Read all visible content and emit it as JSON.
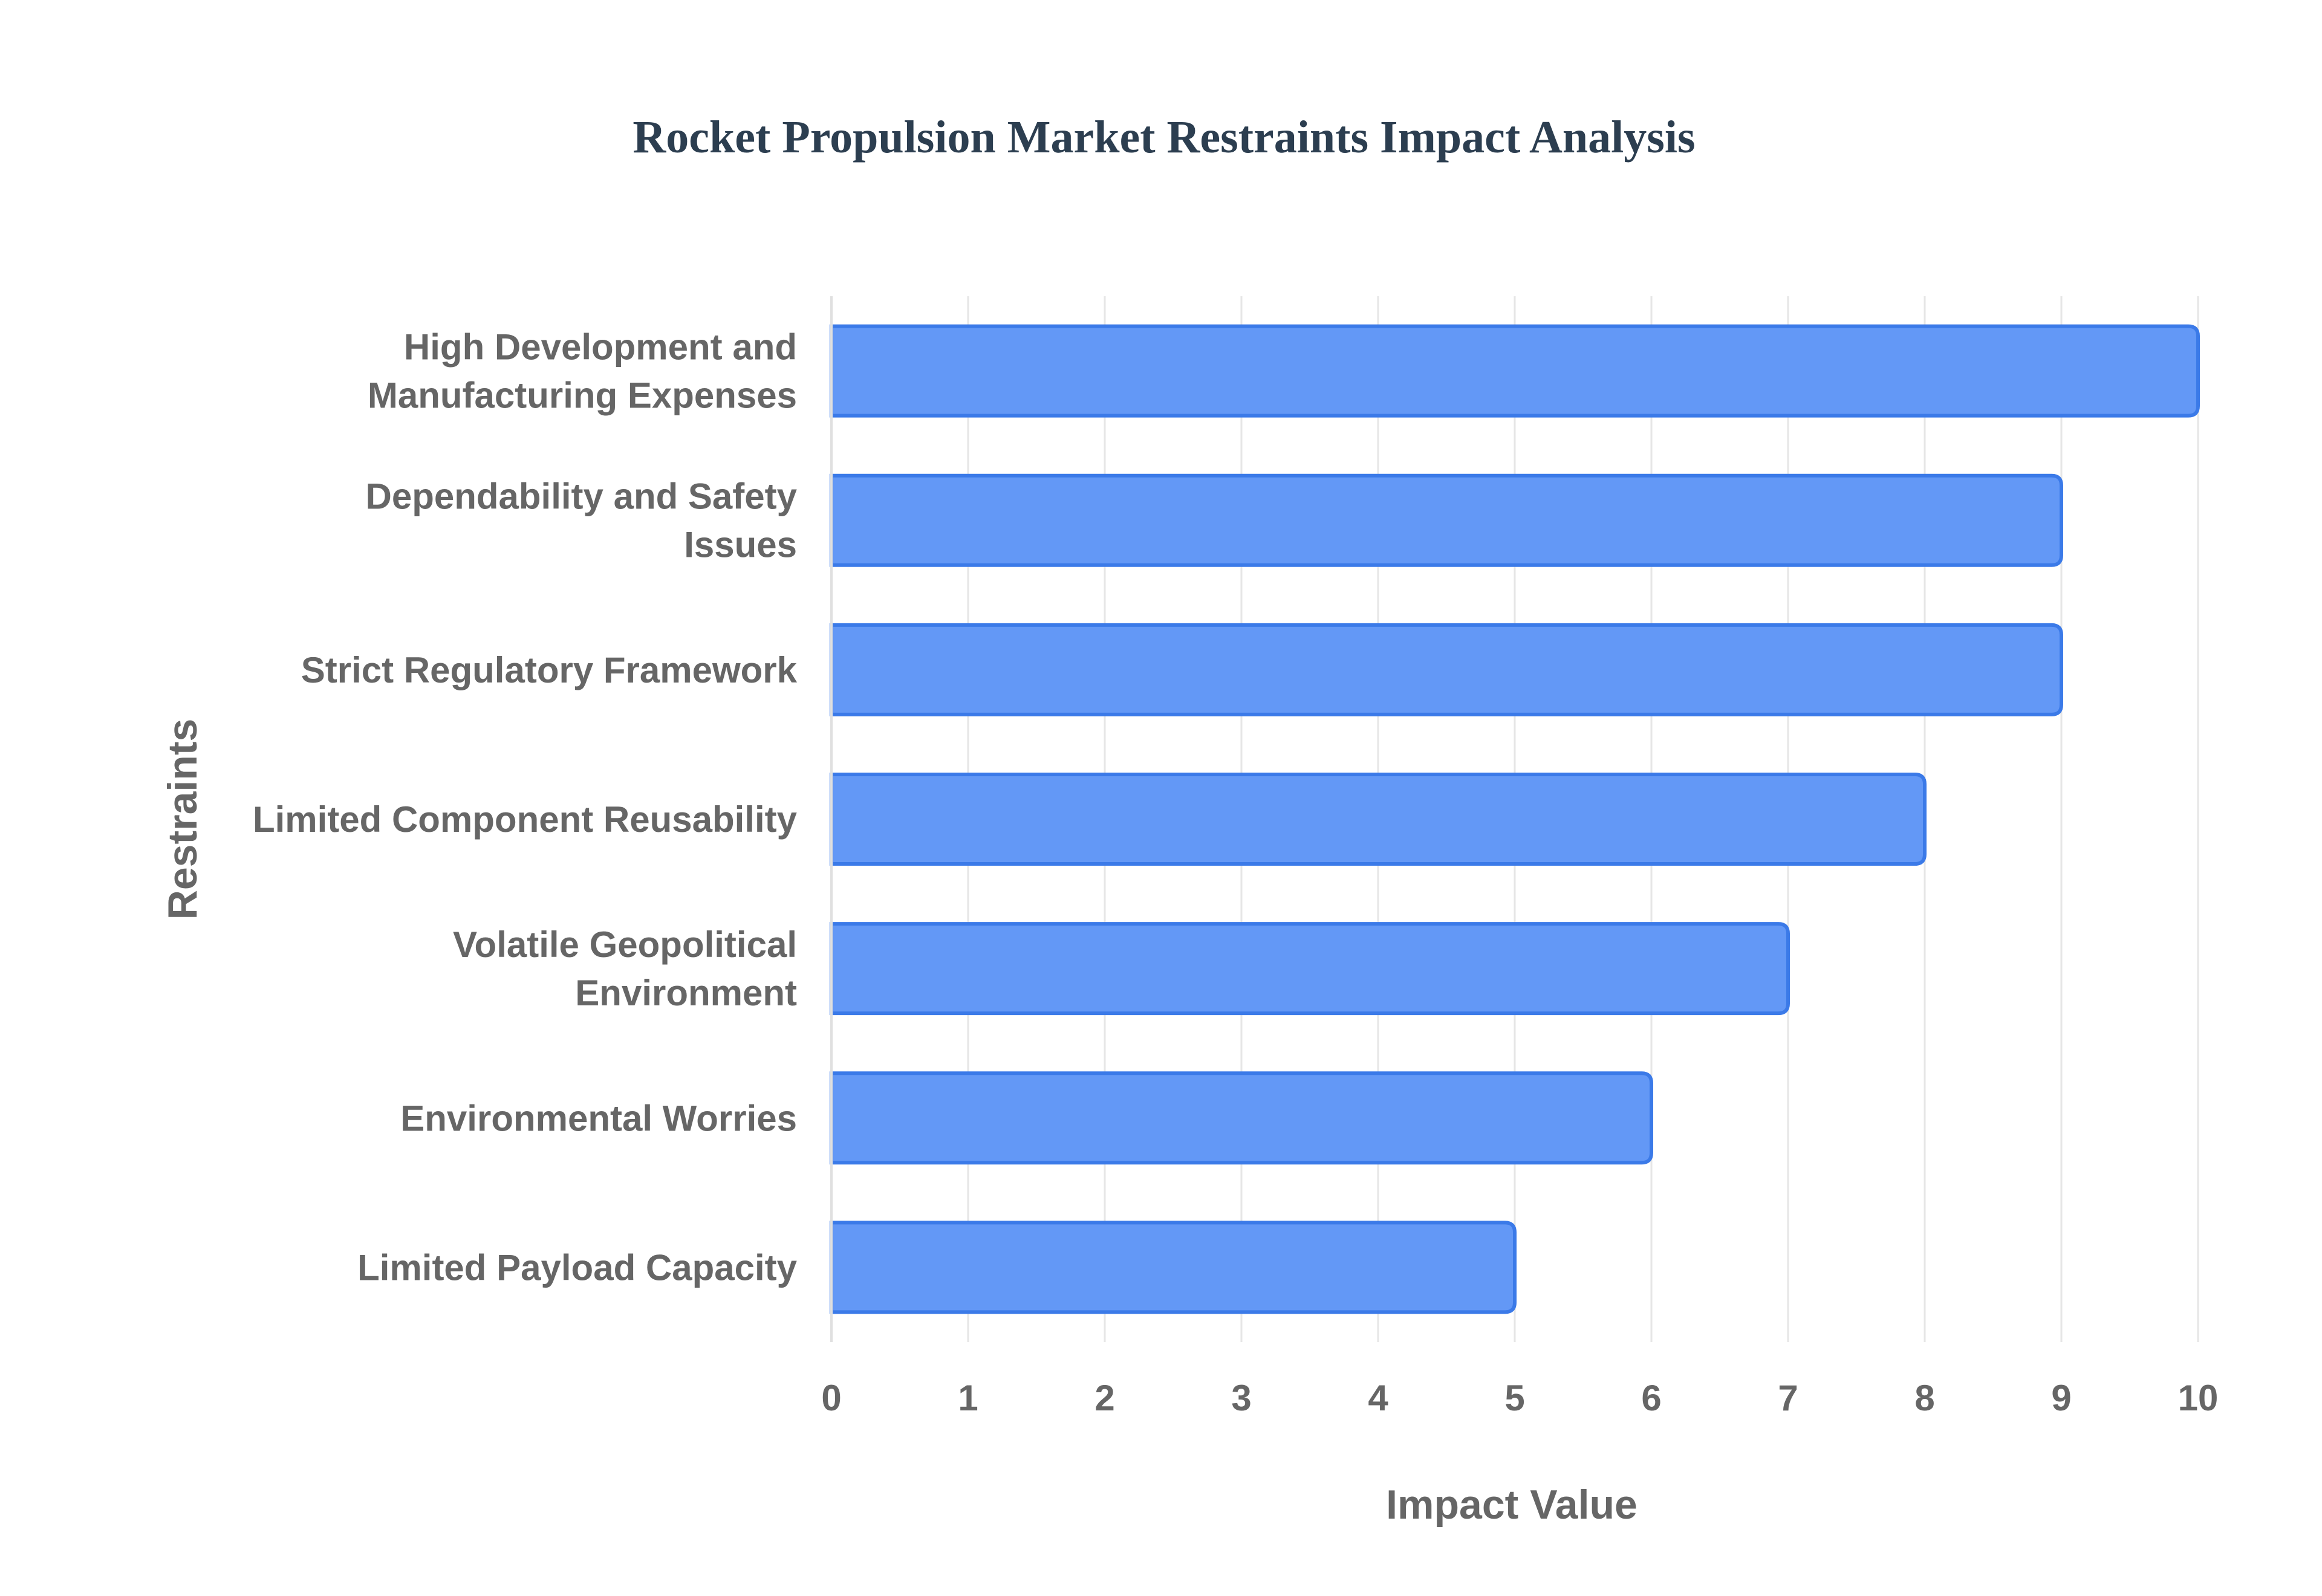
{
  "chart_data": {
    "type": "bar",
    "orientation": "horizontal",
    "title": "Rocket Propulsion Market Restraints Impact Analysis",
    "xlabel": "Impact Value",
    "ylabel": "Restraints",
    "xlim": [
      0,
      10
    ],
    "ticks": [
      "0",
      "1",
      "2",
      "3",
      "4",
      "5",
      "6",
      "7",
      "8",
      "9",
      "10"
    ],
    "grid": true,
    "bar_color": "#6398f6",
    "bar_border_color": "#3b7ae8",
    "categories": [
      [
        "High Development and",
        "Manufacturing Expenses"
      ],
      [
        "Dependability and Safety",
        "Issues"
      ],
      [
        "Strict Regulatory Framework"
      ],
      [
        "Limited Component Reusability"
      ],
      [
        "Volatile Geopolitical",
        "Environment"
      ],
      [
        "Environmental Worries"
      ],
      [
        "Limited Payload Capacity"
      ]
    ],
    "values": [
      10,
      9,
      9,
      8,
      7,
      6,
      5
    ]
  }
}
